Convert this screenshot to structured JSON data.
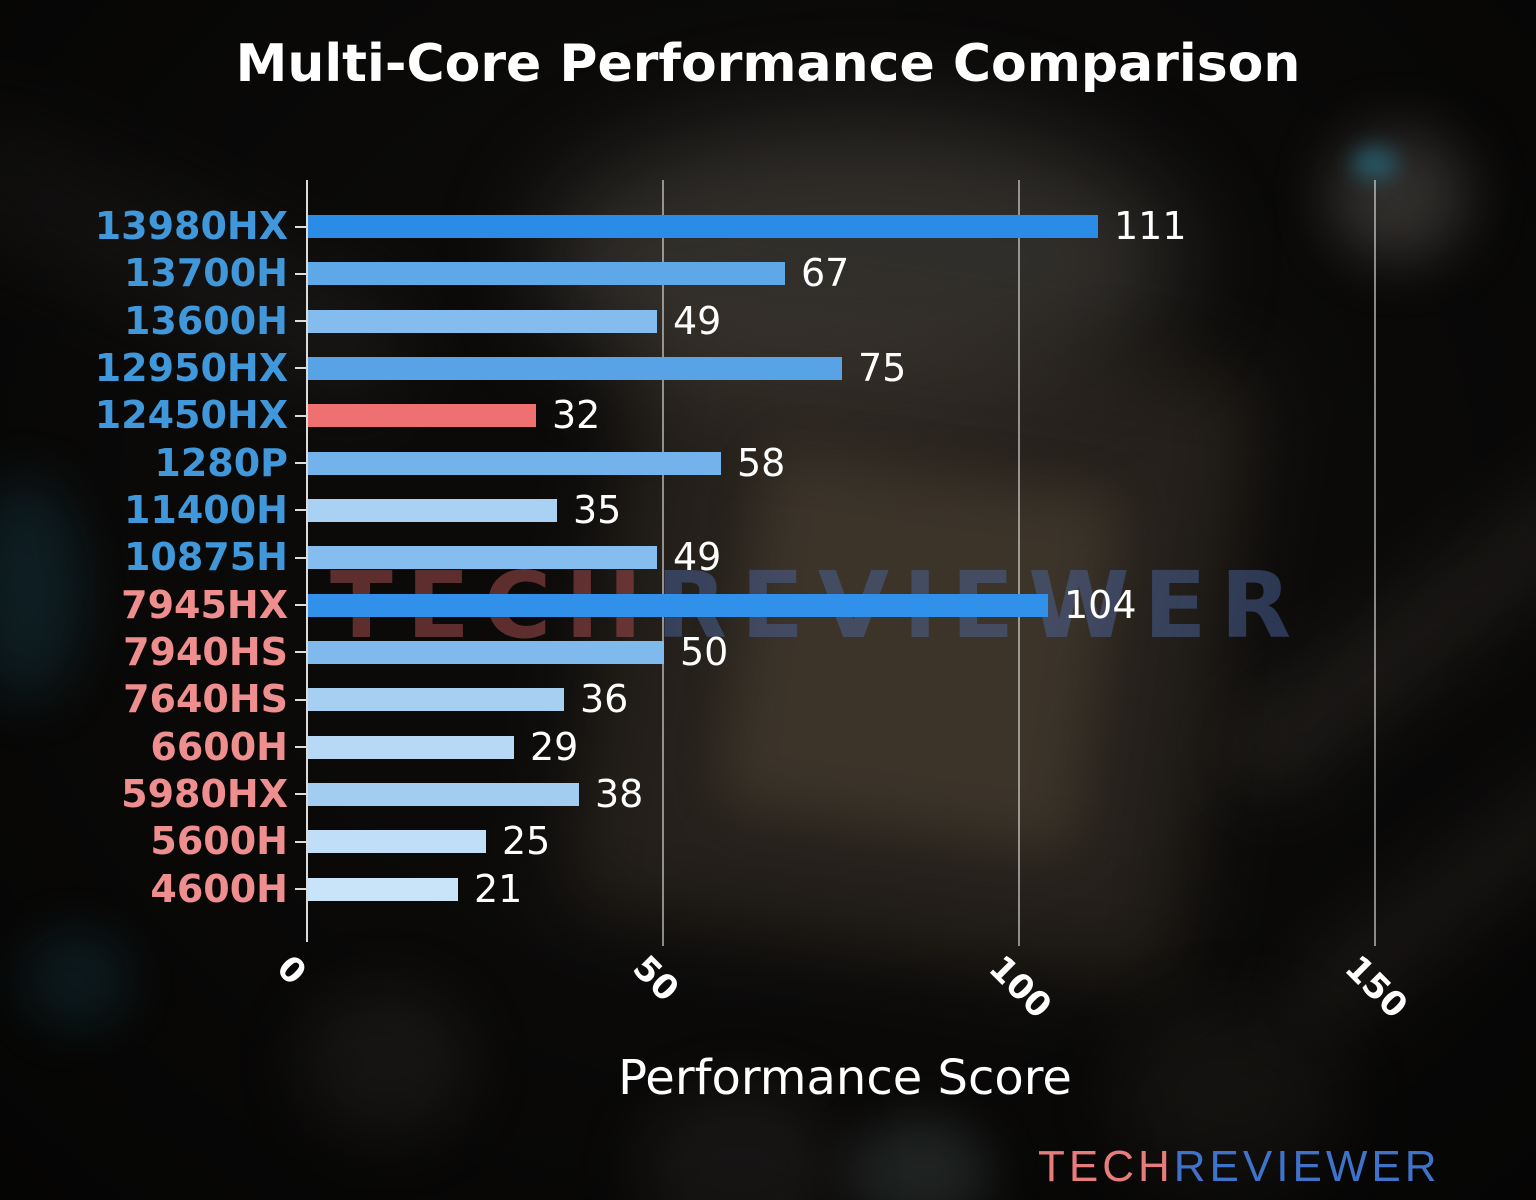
{
  "title": "Multi-Core Performance Comparison",
  "watermark": {
    "part1": "TECH",
    "part2": "REVIEWER"
  },
  "logo": {
    "part1": "TECH",
    "part2": "REVIEWER"
  },
  "colors": {
    "intel_label": "#4097d9",
    "amd_label": "#ef8e8e",
    "highlight_bar": "#ef7070",
    "value_label": "#ffffff",
    "axis": "#dcdcdc",
    "title_text": "#ffffff"
  },
  "chart_data": {
    "type": "bar",
    "orientation": "horizontal",
    "title": "Multi-Core Performance Comparison",
    "xlabel": "Performance Score",
    "ylabel": "",
    "xlim": [
      0,
      157
    ],
    "xtick_values": [
      0,
      50,
      100,
      150
    ],
    "xticks": [
      "0",
      "50",
      "100",
      "150"
    ],
    "grid": "vertical gridlines at each x tick",
    "legend": "none",
    "categories": [
      "13980HX",
      "13700H",
      "13600H",
      "12950HX",
      "12450HX",
      "1280P",
      "11400H",
      "10875H",
      "7945HX",
      "7940HS",
      "7640HS",
      "6600H",
      "5980HX",
      "5600H",
      "4600H"
    ],
    "values": [
      111,
      67,
      49,
      75,
      32,
      58,
      35,
      49,
      104,
      50,
      36,
      29,
      38,
      25,
      21
    ],
    "items": [
      {
        "label": "13980HX",
        "value": 111,
        "vendor": "intel",
        "label_color": "#4097d9",
        "bar_color": "#2b8ce8"
      },
      {
        "label": "13700H",
        "value": 67,
        "vendor": "intel",
        "label_color": "#4097d9",
        "bar_color": "#5fa8e8"
      },
      {
        "label": "13600H",
        "value": 49,
        "vendor": "intel",
        "label_color": "#4097d9",
        "bar_color": "#83bced"
      },
      {
        "label": "12950HX",
        "value": 75,
        "vendor": "intel",
        "label_color": "#4097d9",
        "bar_color": "#57a3e6"
      },
      {
        "label": "12450HX",
        "value": 32,
        "vendor": "intel",
        "label_color": "#4097d9",
        "bar_color": "#ef7070",
        "highlighted": true
      },
      {
        "label": "1280P",
        "value": 58,
        "vendor": "intel",
        "label_color": "#4097d9",
        "bar_color": "#73b2ea"
      },
      {
        "label": "11400H",
        "value": 35,
        "vendor": "intel",
        "label_color": "#4097d9",
        "bar_color": "#a9d1f3"
      },
      {
        "label": "10875H",
        "value": 49,
        "vendor": "intel",
        "label_color": "#4097d9",
        "bar_color": "#84bdee"
      },
      {
        "label": "7945HX",
        "value": 104,
        "vendor": "amd",
        "label_color": "#ef8e8e",
        "bar_color": "#3190e9"
      },
      {
        "label": "7940HS",
        "value": 50,
        "vendor": "amd",
        "label_color": "#ef8e8e",
        "bar_color": "#80b9ec"
      },
      {
        "label": "7640HS",
        "value": 36,
        "vendor": "amd",
        "label_color": "#ef8e8e",
        "bar_color": "#a7cff2"
      },
      {
        "label": "6600H",
        "value": 29,
        "vendor": "amd",
        "label_color": "#ef8e8e",
        "bar_color": "#b7d9f5"
      },
      {
        "label": "5980HX",
        "value": 38,
        "vendor": "amd",
        "label_color": "#ef8e8e",
        "bar_color": "#a2cdf1"
      },
      {
        "label": "5600H",
        "value": 25,
        "vendor": "amd",
        "label_color": "#ef8e8e",
        "bar_color": "#c0def7"
      },
      {
        "label": "4600H",
        "value": 21,
        "vendor": "amd",
        "label_color": "#ef8e8e",
        "bar_color": "#c9e3f8"
      }
    ]
  }
}
